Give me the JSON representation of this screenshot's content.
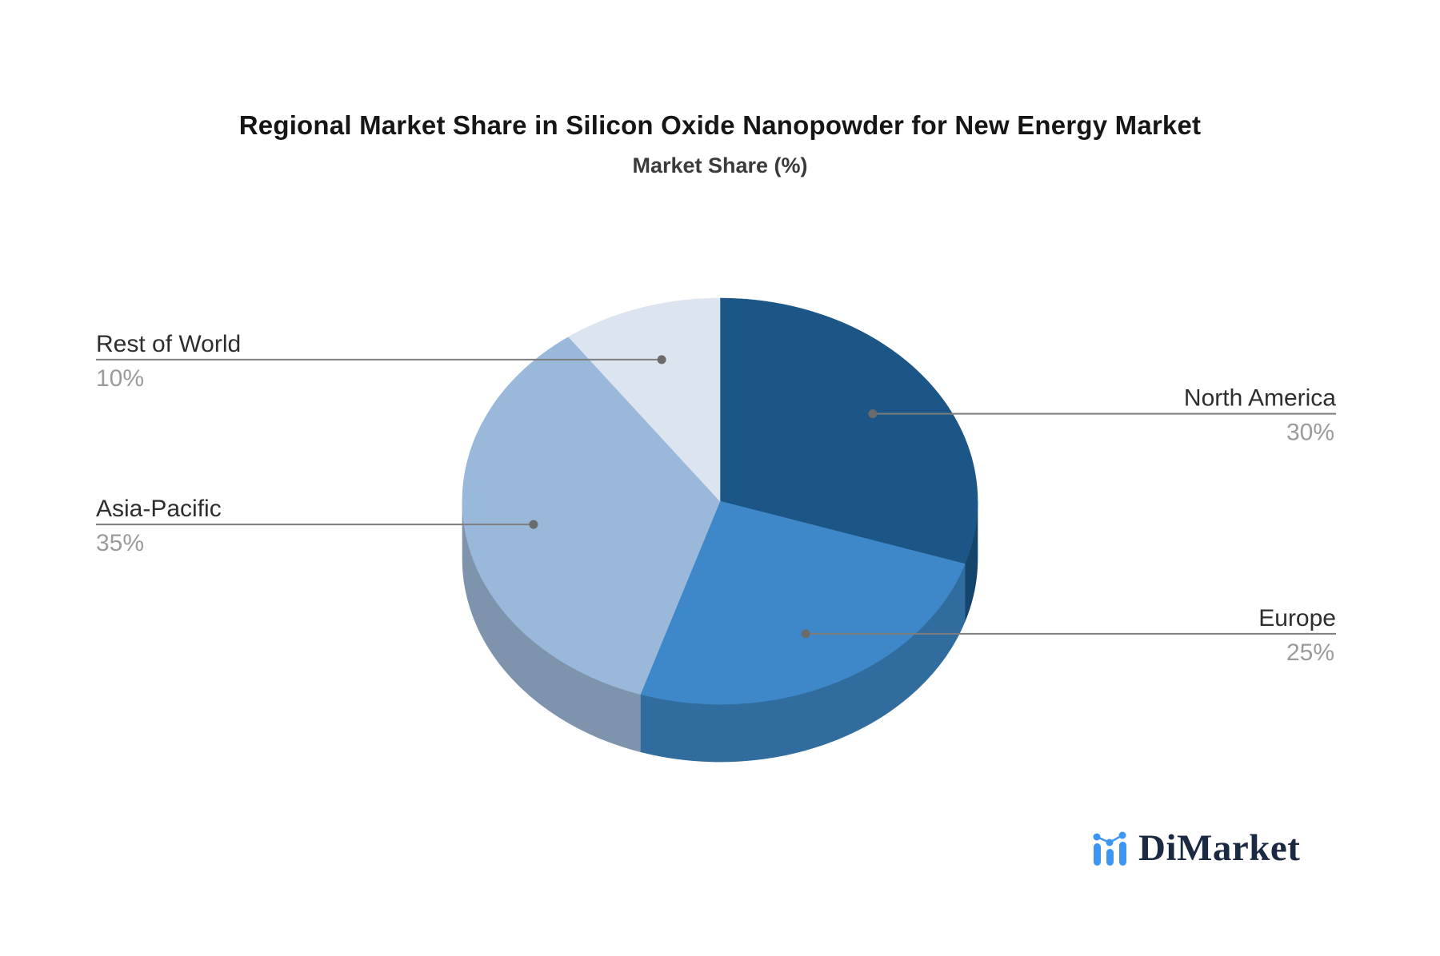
{
  "page": {
    "background": "#ffffff"
  },
  "chart_data": {
    "type": "pie",
    "title": "Regional Market Share in Silicon Oxide Nanopowder for New Energy Market",
    "subtitle": "Market Share (%)",
    "unit": "%",
    "effect_3d": true,
    "start_angle": "12-o-clock, clockwise",
    "legend": false,
    "categories": [
      "North America",
      "Europe",
      "Asia-Pacific",
      "Rest of World"
    ],
    "values": [
      30,
      25,
      35,
      10
    ],
    "slices": [
      {
        "name": "North America",
        "value": 30,
        "pct_label": "30%",
        "color": "#1b5686",
        "side_color": "#15456b",
        "label_side": "right"
      },
      {
        "name": "Europe",
        "value": 25,
        "pct_label": "25%",
        "color": "#3e88c9",
        "side_color": "#316c9e",
        "label_side": "right"
      },
      {
        "name": "Asia-Pacific",
        "value": 35,
        "pct_label": "35%",
        "color": "#9ab8d9",
        "side_color": "#7d94ac",
        "label_side": "left"
      },
      {
        "name": "Rest of World",
        "value": 10,
        "pct_label": "10%",
        "color": "#dce4ef",
        "side_color": "#b9c4d4",
        "label_side": "left"
      }
    ],
    "label_style": {
      "line_color": "#7d7d7d",
      "dot_color": "#6b6b6b",
      "name_color": "#2e2e2e",
      "pct_color": "#9b9b9b"
    }
  },
  "logo": {
    "text": "DiMarket",
    "icon": "bar-chart-logo-icon",
    "text_color": "#1b2942",
    "icon_color": "#3d97f2"
  }
}
